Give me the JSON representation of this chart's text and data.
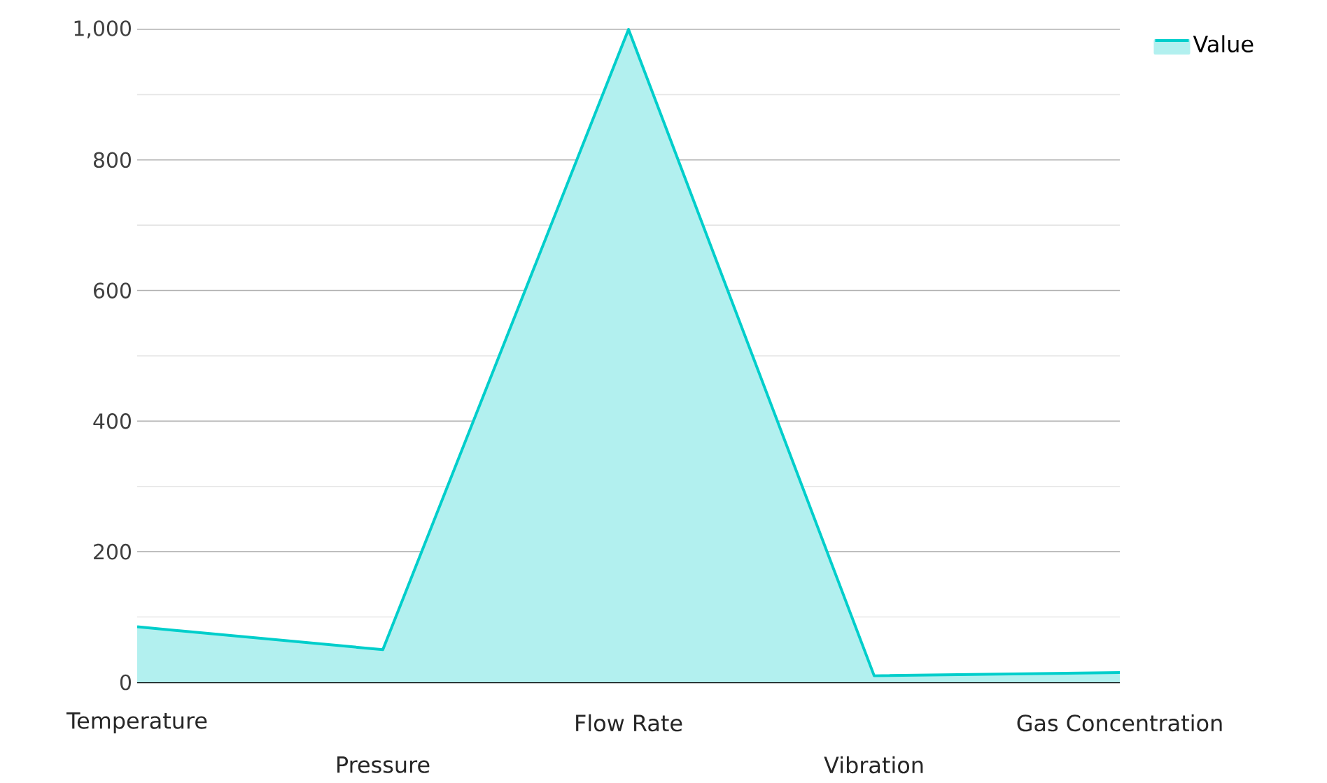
{
  "chart_data": {
    "type": "area",
    "categories": [
      "Temperature",
      "Pressure",
      "Flow Rate",
      "Vibration",
      "Gas Concentration"
    ],
    "series": [
      {
        "name": "Value",
        "color": "#00cecb",
        "values": [
          85,
          50,
          1000,
          10,
          15
        ]
      }
    ],
    "ylim": [
      0,
      1000
    ],
    "yticks": [
      0,
      {
        "value": 100,
        "label": null
      },
      200,
      {
        "value": 300,
        "label": null
      },
      400,
      {
        "value": 500,
        "label": null
      },
      600,
      {
        "value": 700,
        "label": null
      },
      800,
      {
        "value": 900,
        "label": null
      },
      {
        "value": 1000,
        "label": "1,000"
      }
    ],
    "grid": "y",
    "legend": "top right"
  }
}
